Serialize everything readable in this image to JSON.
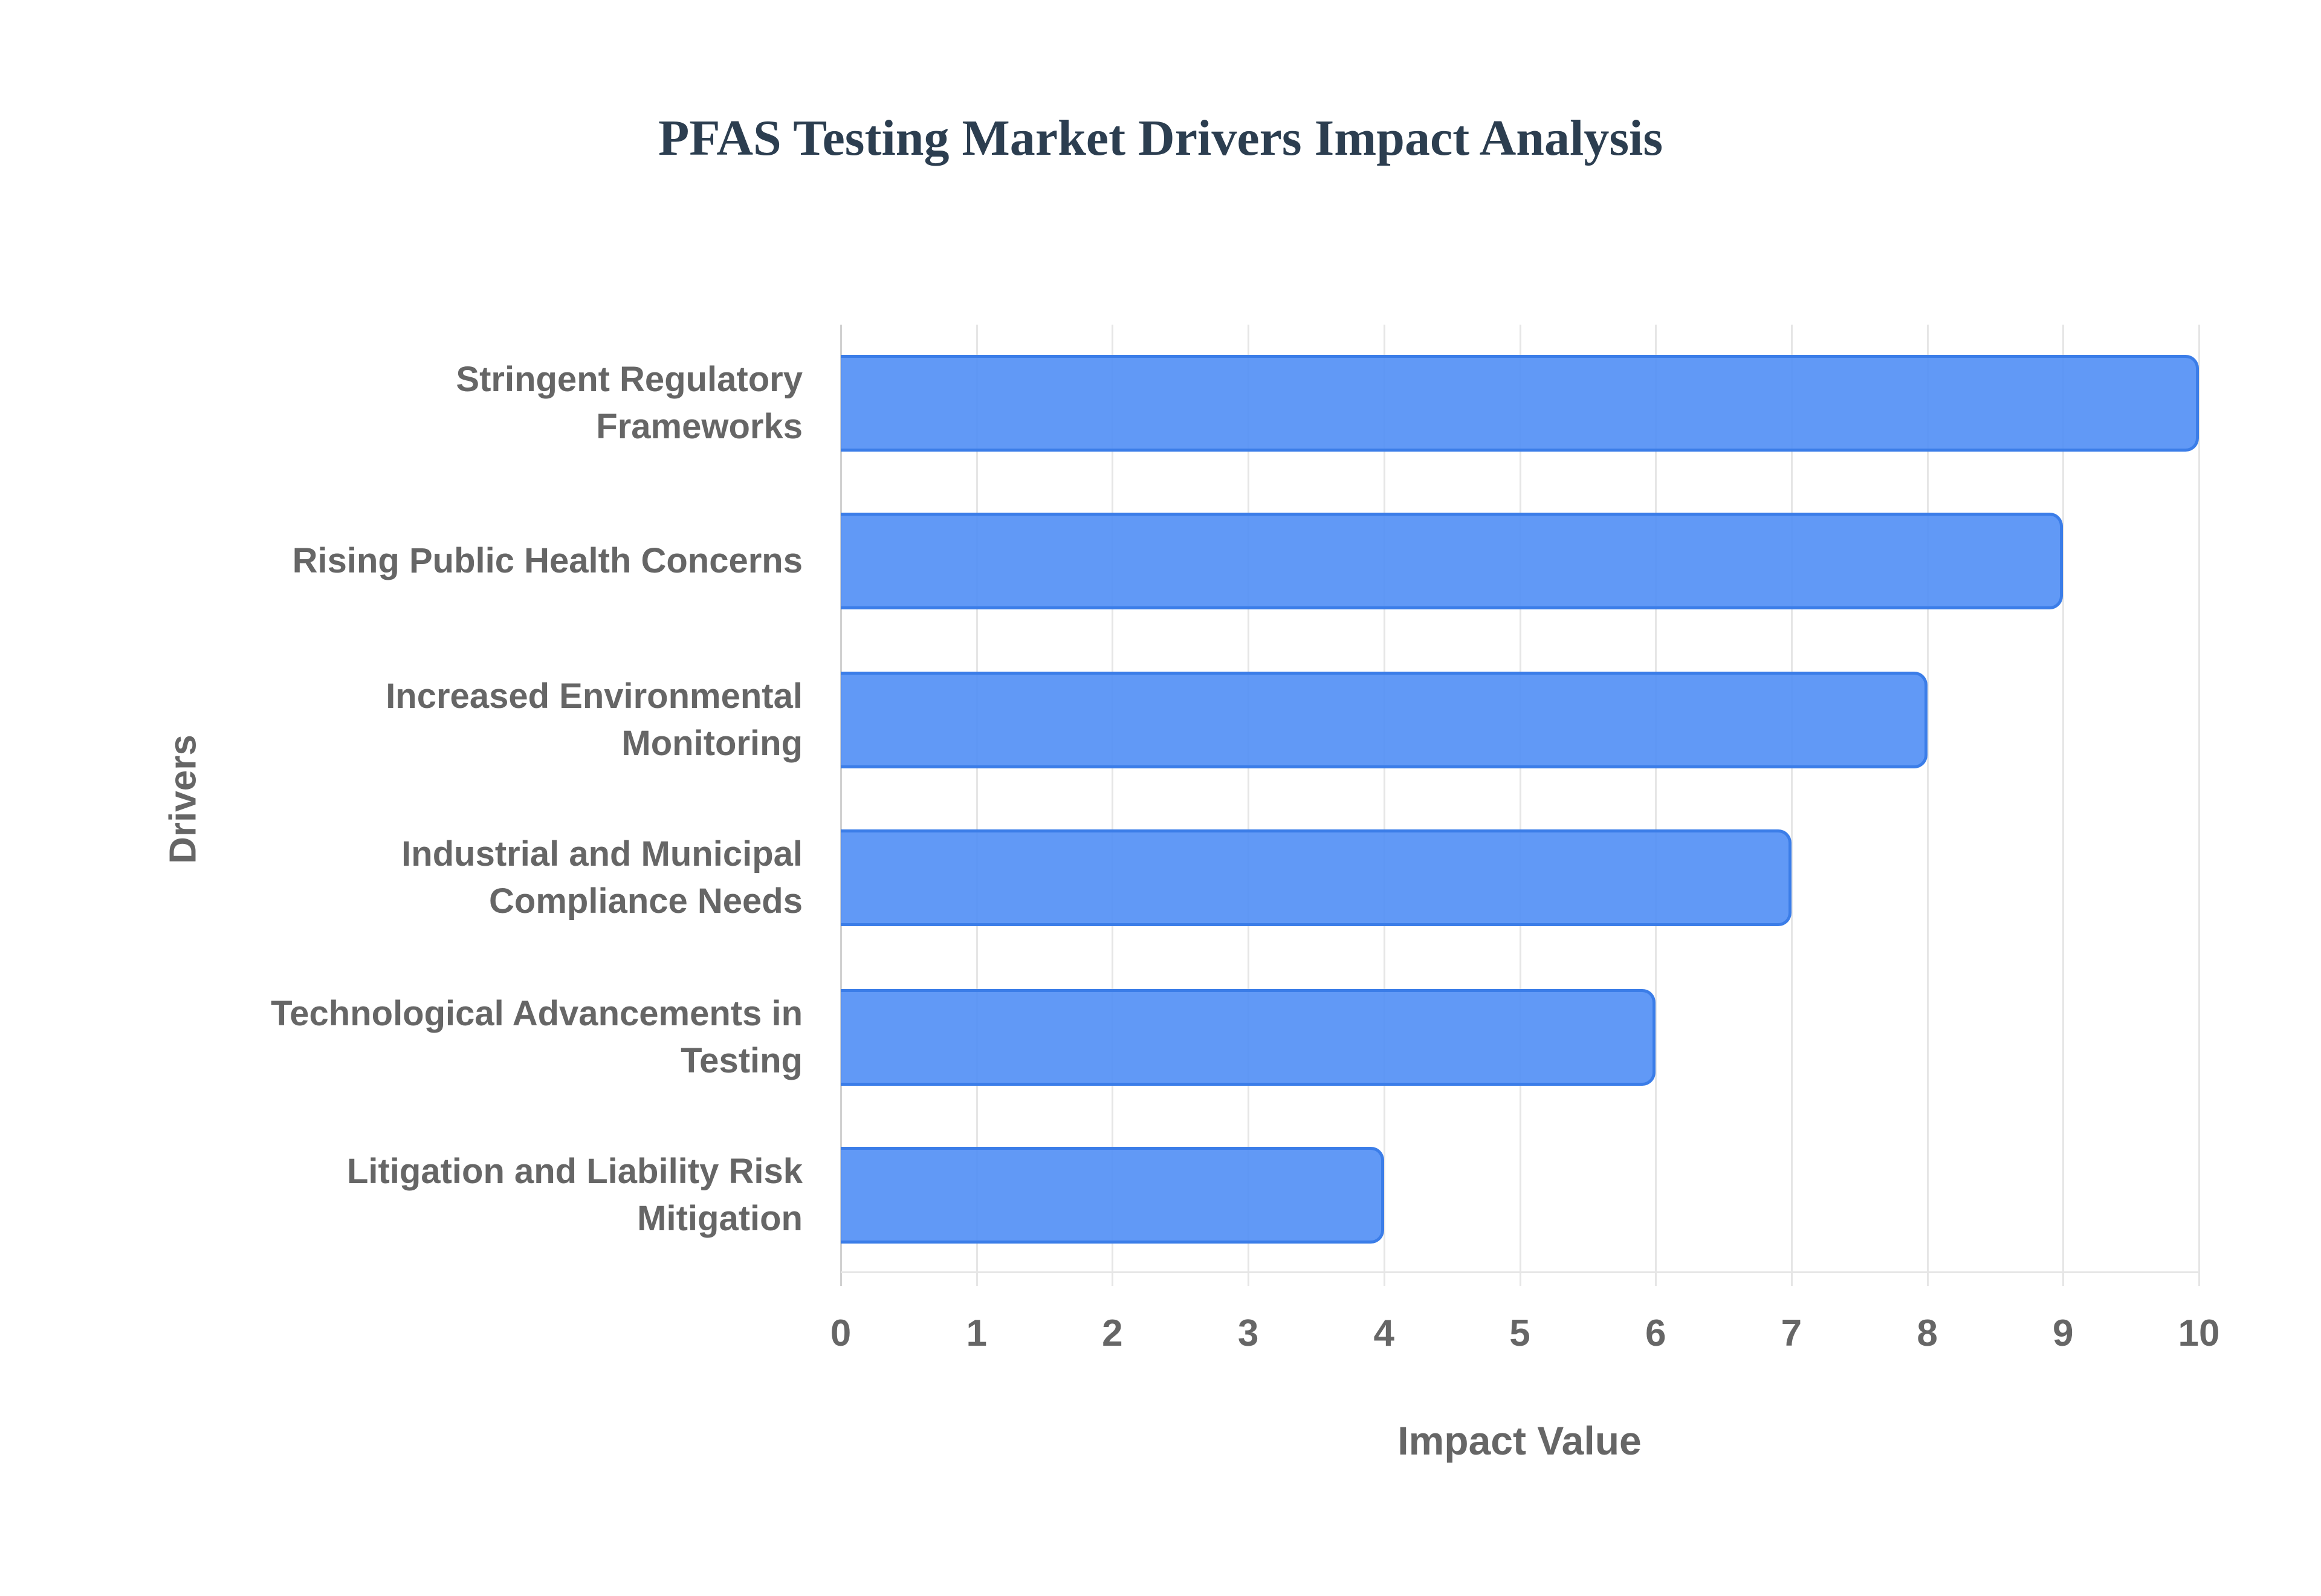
{
  "chart_data": {
    "type": "bar",
    "orientation": "horizontal",
    "title": "PFAS Testing Market Drivers Impact Analysis",
    "xlabel": "Impact Value",
    "ylabel": "Drivers",
    "xlim": [
      0,
      10
    ],
    "x_ticks": [
      "0",
      "1",
      "2",
      "3",
      "4",
      "5",
      "6",
      "7",
      "8",
      "9",
      "10"
    ],
    "grid": true,
    "legend": null,
    "categories": [
      "Stringent Regulatory Frameworks",
      "Rising Public Health Concerns",
      "Increased Environmental Monitoring",
      "Industrial and Municipal Compliance Needs",
      "Technological Advancements in Testing",
      "Litigation and Liability Risk Mitigation"
    ],
    "values": [
      10,
      9,
      8,
      7,
      6,
      4
    ],
    "bar_color": "#508ef5",
    "bar_border_color": "#3b7de8"
  },
  "labels": {
    "title": "PFAS Testing Market Drivers Impact Analysis",
    "xlabel": "Impact Value",
    "ylabel": "Drivers",
    "categories_wrapped": [
      [
        "Stringent Regulatory",
        "Frameworks"
      ],
      [
        "Rising Public Health Concerns"
      ],
      [
        "Increased Environmental",
        "Monitoring"
      ],
      [
        "Industrial and Municipal",
        "Compliance Needs"
      ],
      [
        "Technological Advancements in",
        "Testing"
      ],
      [
        "Litigation and Liability Risk",
        "Mitigation"
      ]
    ]
  }
}
